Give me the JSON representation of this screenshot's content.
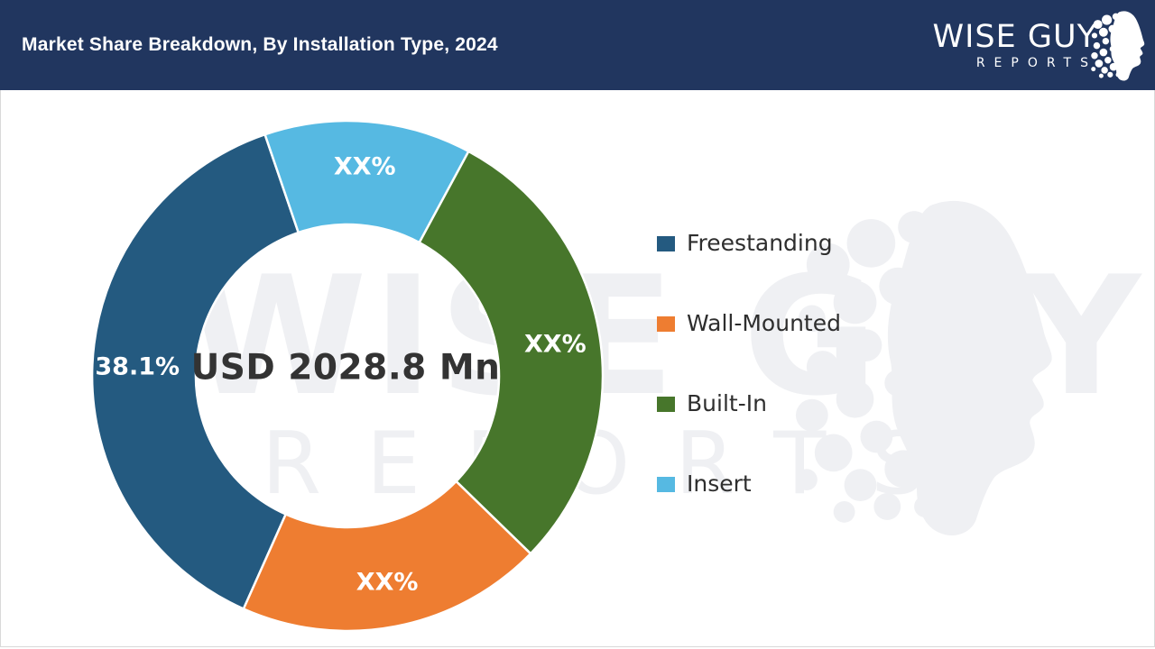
{
  "header": {
    "title": "Market Share Breakdown, By Installation Type, 2024",
    "bg_color": "#21365F",
    "logo": {
      "line1": "WISE GUY",
      "line2": "REPORTS"
    }
  },
  "watermark": {
    "line1": "WISE GUY",
    "line2": "REPORTS",
    "color": "#EFF0F3"
  },
  "chart_data": {
    "type": "pie",
    "subtype": "donut",
    "title": "Market Share Breakdown, By Installation Type, 2024",
    "center_label": "USD 2028.8 Mn",
    "start_angle_deg": 204,
    "segments": [
      {
        "name": "Freestanding",
        "value": 38.1,
        "label": "38.1%",
        "color": "#245A80"
      },
      {
        "name": "Insert",
        "value": 13.1,
        "label": "XX%",
        "color": "#56B9E2"
      },
      {
        "name": "Built-In",
        "value": 29.4,
        "label": "XX%",
        "color": "#47762B"
      },
      {
        "name": "Wall-Mounted",
        "value": 19.4,
        "label": "XX%",
        "color": "#EE7D31"
      }
    ],
    "legend": {
      "position": "right",
      "order": [
        "Freestanding",
        "Wall-Mounted",
        "Built-In",
        "Insert"
      ]
    }
  }
}
